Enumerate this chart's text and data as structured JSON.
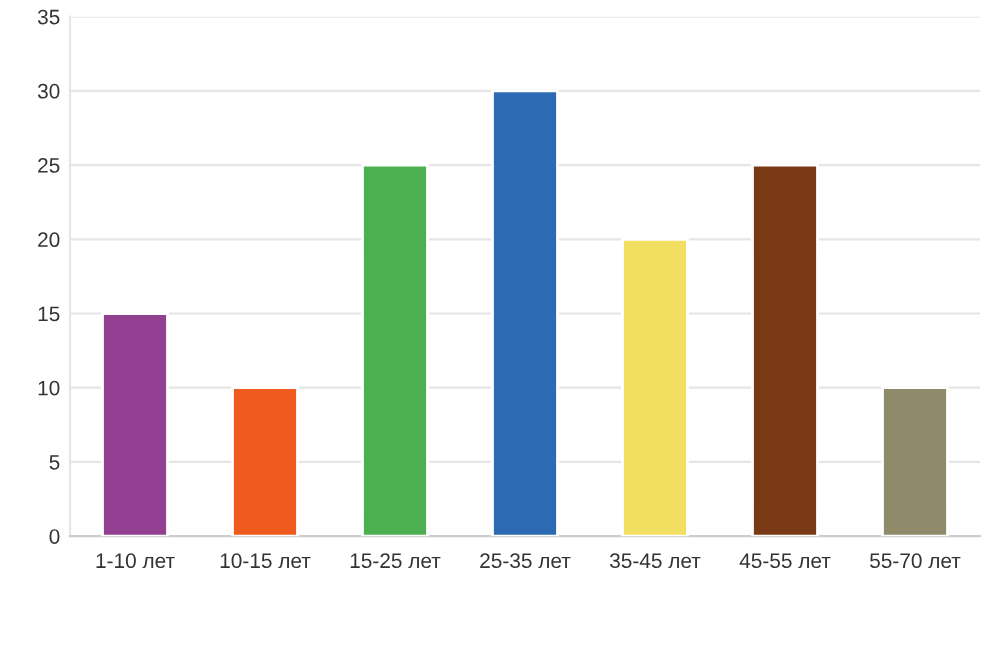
{
  "chart_data": {
    "type": "bar",
    "categories": [
      "1-10 лет",
      "10-15 лет",
      "15-25 лет",
      "25-35 лет",
      "35-45 лет",
      "45-55 лет",
      "55-70 лет"
    ],
    "values": [
      15,
      10,
      25,
      30,
      20,
      25,
      10
    ],
    "colors": [
      "#933f92",
      "#ef5a1f",
      "#4cb050",
      "#2c6bb3",
      "#f2df62",
      "#793915",
      "#8e8a6a"
    ],
    "ylim": [
      0,
      35
    ],
    "yticks": [
      0,
      5,
      10,
      15,
      20,
      25,
      30,
      35
    ],
    "grid": "y",
    "legend": false
  }
}
